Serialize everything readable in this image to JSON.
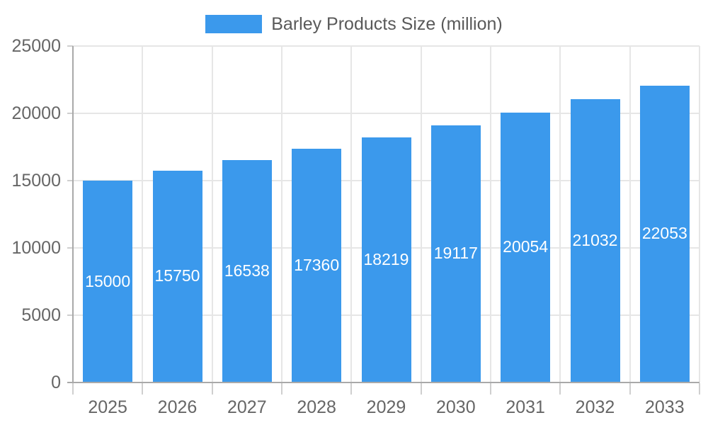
{
  "chart_data": {
    "type": "bar",
    "title": "Barley Products Size (million)",
    "categories": [
      "2025",
      "2026",
      "2027",
      "2028",
      "2029",
      "2030",
      "2031",
      "2032",
      "2033"
    ],
    "series": [
      {
        "name": "Barley Products Size (million)",
        "values": [
          15000,
          15750,
          16538,
          17360,
          18219,
          19117,
          20054,
          21032,
          22053
        ]
      }
    ],
    "value_labels_shown": true,
    "value_label_position": "centered inside bar",
    "xlabel": "",
    "ylabel": "",
    "ylim": [
      0,
      25000
    ],
    "ytick_step": 5000,
    "yticks": [
      0,
      5000,
      10000,
      15000,
      20000,
      25000
    ],
    "grid": true,
    "legend_position": "top-center",
    "colors": {
      "bar": "#3b99ec",
      "gridline": "#e6e6e6",
      "axis_line": "#a9a9a9",
      "tick_mark": "#cfcfcf",
      "tick_label": "#666666",
      "legend_label": "#595959",
      "value_label": "#ffffff",
      "background": "#ffffff"
    }
  }
}
